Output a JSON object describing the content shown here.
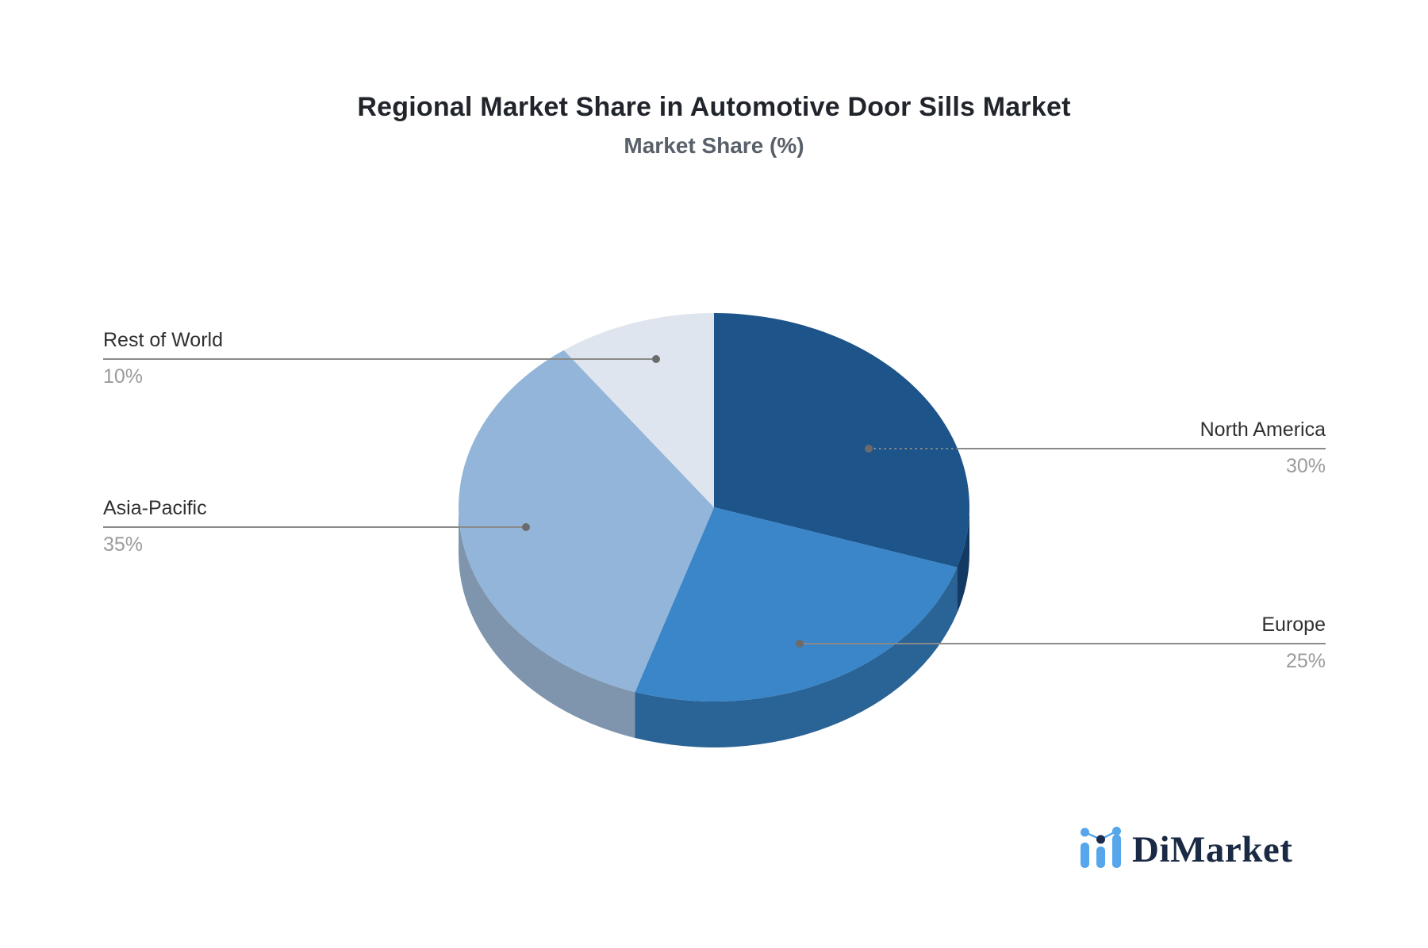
{
  "page": {
    "background": "#ffffff"
  },
  "chart_data": {
    "type": "pie",
    "effect": "3d",
    "title": "Regional Market Share in Automotive Door Sills Market",
    "subtitle": "Market Share (%)",
    "direction": "clockwise",
    "start_angle_deg": 0,
    "legend": "none",
    "label_style": "callout-leader-lines",
    "slices": [
      {
        "label": "North America",
        "value": 30,
        "pct_text": "30%",
        "color": "#1D5489",
        "side_color": "#133A62"
      },
      {
        "label": "Europe",
        "value": 25,
        "pct_text": "25%",
        "color": "#3A86C8",
        "side_color": "#2A6396"
      },
      {
        "label": "Asia-Pacific",
        "value": 35,
        "pct_text": "35%",
        "color": "#93B5D9",
        "side_color": "#7E95AD"
      },
      {
        "label": "Rest of World",
        "value": 10,
        "pct_text": "10%",
        "color": "#DFE5EE",
        "side_color": "#C6D0DD"
      }
    ]
  },
  "colors": {
    "connector_line": "#8a8a8a",
    "connector_dot": "#6b6b6b",
    "label_text": "#303030",
    "pct_text": "#9b9b9b",
    "title_text": "#21252b",
    "subtitle_text": "#596069"
  },
  "logo": {
    "brand": "DiMarket",
    "icon": "bar-line-chart-icon",
    "icon_bar_color": "#55a6ea",
    "icon_dot_dark_color": "#1d2b4d",
    "text_color": "#1b2a44"
  }
}
